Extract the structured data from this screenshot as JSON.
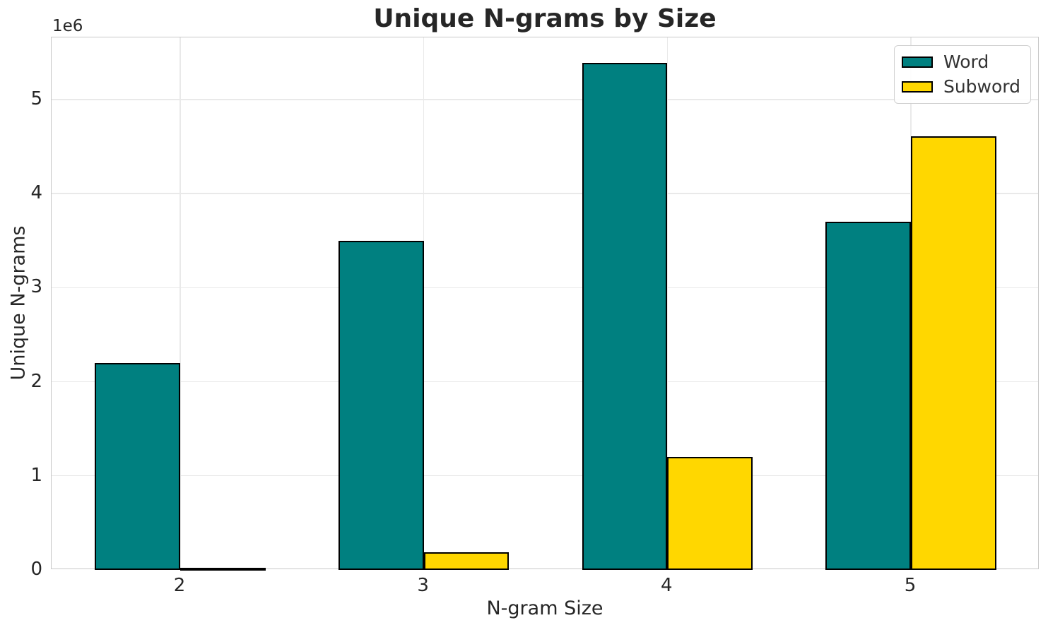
{
  "chart_data": {
    "type": "bar",
    "title": "Unique N-grams by Size",
    "xlabel": "N-gram Size",
    "ylabel": "Unique N-grams",
    "y_offset_label": "1e6",
    "categories": [
      "2",
      "3",
      "4",
      "5"
    ],
    "series": [
      {
        "name": "Word",
        "color": "#008080",
        "values": [
          2200000,
          3500000,
          5390000,
          3700000
        ]
      },
      {
        "name": "Subword",
        "color": "#FFD700",
        "values": [
          25000,
          185000,
          1200000,
          4610000
        ]
      }
    ],
    "bar_edge_color": "#000000",
    "bar_width_data_units": 0.35,
    "xlim": [
      -0.528,
      3.528
    ],
    "ylim": [
      0,
      5660000
    ],
    "yticks": [
      0,
      1000000,
      2000000,
      3000000,
      4000000,
      5000000
    ],
    "ytick_labels": [
      "0",
      "1",
      "2",
      "3",
      "4",
      "5"
    ],
    "grid": true,
    "legend": {
      "position": "upper right"
    }
  },
  "colors": {
    "text": "#262626",
    "grid": "#e9e9e9",
    "spine": "#c9c9c9",
    "background": "#ffffff"
  }
}
